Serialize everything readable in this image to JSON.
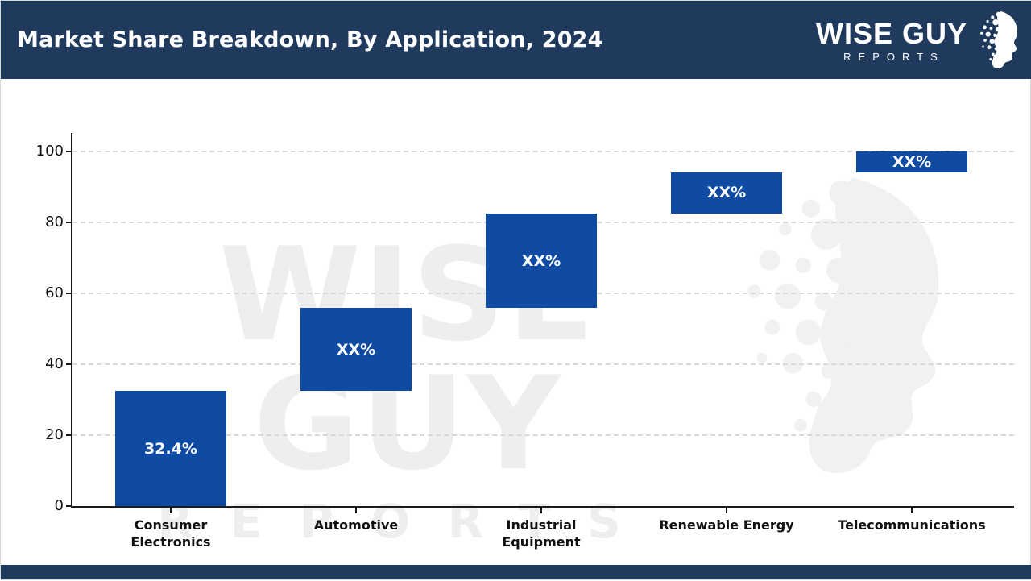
{
  "header": {
    "title": "Market Share Breakdown, By Application, 2024",
    "bg_color": "#203a5e",
    "logo": {
      "line1": "WISE GUY",
      "line2": "REPORTS"
    }
  },
  "watermark": {
    "line1": "WISE GUY",
    "line2": "REPORTS"
  },
  "footer": {
    "bg_color": "#203a5e"
  },
  "chart_data": {
    "type": "bar",
    "subtype": "waterfall",
    "title": "Market Share Breakdown, By Application, 2024",
    "xlabel": "",
    "ylabel": "",
    "ylim": [
      0,
      105
    ],
    "yticks": [
      0,
      20,
      40,
      60,
      80,
      100
    ],
    "grid": "dashed-horizontal",
    "bar_color": "#0f4ba3",
    "label_color": "#ffffff",
    "axis_color": "#1a1a1a",
    "grid_color": "#d8d8d8",
    "legend": "none",
    "categories": [
      {
        "label": "Consumer Electronics",
        "lines": [
          "Consumer",
          "Electronics"
        ]
      },
      {
        "label": "Automotive",
        "lines": [
          "Automotive"
        ]
      },
      {
        "label": "Industrial Equipment",
        "lines": [
          "Industrial",
          "Equipment"
        ]
      },
      {
        "label": "Renewable Energy",
        "lines": [
          "Renewable Energy"
        ]
      },
      {
        "label": "Telecommunications",
        "lines": [
          "Telecommunications"
        ]
      }
    ],
    "segments": [
      {
        "category": "Consumer Electronics",
        "start": 0,
        "end": 32.4,
        "value": 32.4,
        "label": "32.4%"
      },
      {
        "category": "Automotive",
        "start": 32.4,
        "end": 55.9,
        "value": 23.5,
        "label": "XX%"
      },
      {
        "category": "Industrial Equipment",
        "start": 55.9,
        "end": 82.5,
        "value": 26.6,
        "label": "XX%"
      },
      {
        "category": "Renewable Energy",
        "start": 82.5,
        "end": 94.1,
        "value": 11.6,
        "label": "XX%"
      },
      {
        "category": "Telecommunications",
        "start": 94.1,
        "end": 100,
        "value": 5.9,
        "label": "XX%"
      }
    ]
  }
}
